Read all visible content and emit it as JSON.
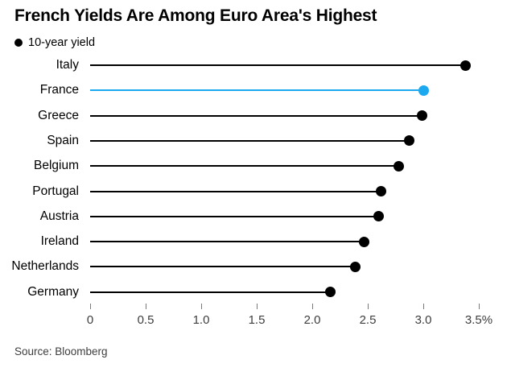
{
  "header": {
    "title": "French Yields Are Among Euro Area's Highest",
    "legend_label": "10-year yield"
  },
  "footer": {
    "source": "Source: Bloomberg"
  },
  "colors": {
    "series_default": "#000000",
    "series_highlight": "#1ca9f0",
    "axis_text": "#3d3d3d",
    "tick_mark": "#7a7a7a"
  },
  "chart_data": {
    "type": "bar",
    "variant": "horizontal-lollipop",
    "title": "French Yields Are Among Euro Area's Highest",
    "legend": [
      "10-year yield"
    ],
    "legend_position": "top-left",
    "categories": [
      "Italy",
      "France",
      "Greece",
      "Spain",
      "Belgium",
      "Portugal",
      "Austria",
      "Ireland",
      "Netherlands",
      "Germany"
    ],
    "values": [
      3.38,
      3.0,
      2.99,
      2.87,
      2.78,
      2.62,
      2.6,
      2.47,
      2.39,
      2.16
    ],
    "unit": "%",
    "highlight_category": "France",
    "xlabel": "",
    "ylabel": "",
    "xlim": [
      0,
      3.5
    ],
    "xticks": [
      {
        "value": 0,
        "label": "0"
      },
      {
        "value": 0.5,
        "label": "0.5"
      },
      {
        "value": 1,
        "label": "1.0"
      },
      {
        "value": 1.5,
        "label": "1.5"
      },
      {
        "value": 2,
        "label": "2.0"
      },
      {
        "value": 2.5,
        "label": "2.5"
      },
      {
        "value": 3,
        "label": "3.0"
      },
      {
        "value": 3.5,
        "label": "3.5%"
      }
    ],
    "grid": false
  }
}
